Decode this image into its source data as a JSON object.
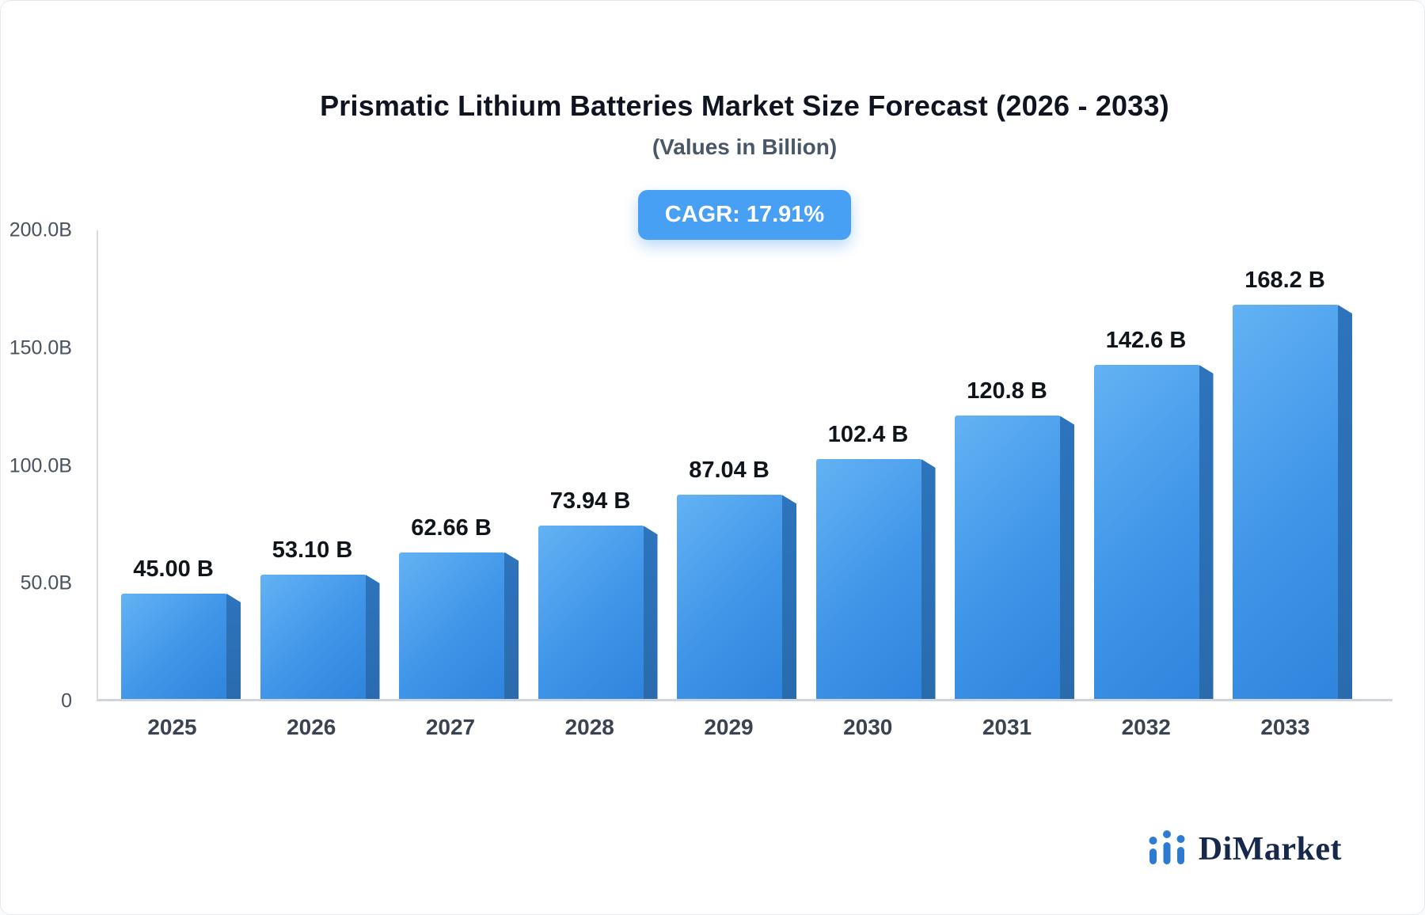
{
  "header": {
    "title": "Prismatic Lithium Batteries Market Size Forecast (2026 - 2033)",
    "subtitle": "(Values in Billion)",
    "cagr_badge": "CAGR: 17.91%"
  },
  "chart_data": {
    "type": "bar",
    "title": "Prismatic Lithium Batteries Market Size Forecast (2026 - 2033)",
    "subtitle": "(Values in Billion)",
    "annotation": "CAGR: 17.91%",
    "categories": [
      "2025",
      "2026",
      "2027",
      "2028",
      "2029",
      "2030",
      "2031",
      "2032",
      "2033"
    ],
    "values": [
      45.0,
      53.1,
      62.66,
      73.94,
      87.04,
      102.4,
      120.8,
      142.6,
      168.2
    ],
    "value_labels": [
      "45.00 B",
      "53.10 B",
      "62.66 B",
      "73.94 B",
      "87.04 B",
      "102.4 B",
      "120.8 B",
      "142.6 B",
      "168.2 B"
    ],
    "xlabel": "",
    "ylabel": "",
    "ylim": [
      0,
      200
    ],
    "yticks": [
      0,
      50,
      100,
      150,
      200
    ],
    "ytick_labels": [
      "0",
      "50.0B",
      "100.0B",
      "150.0B",
      "200.0B"
    ],
    "grid": false,
    "legend": false,
    "colors": {
      "bar_top": "#63b2f4",
      "bar_mid": "#3f95e8",
      "bar_bottom": "#2f85dc",
      "bar_side": "#2d74bd",
      "badge": "#48a0f5"
    }
  },
  "branding": {
    "logo_text": "DiMarket",
    "logo_icon": "mini-bar-chart-icon",
    "logo_text_color": "#16294c",
    "logo_icon_color": "#2d7ad3"
  }
}
